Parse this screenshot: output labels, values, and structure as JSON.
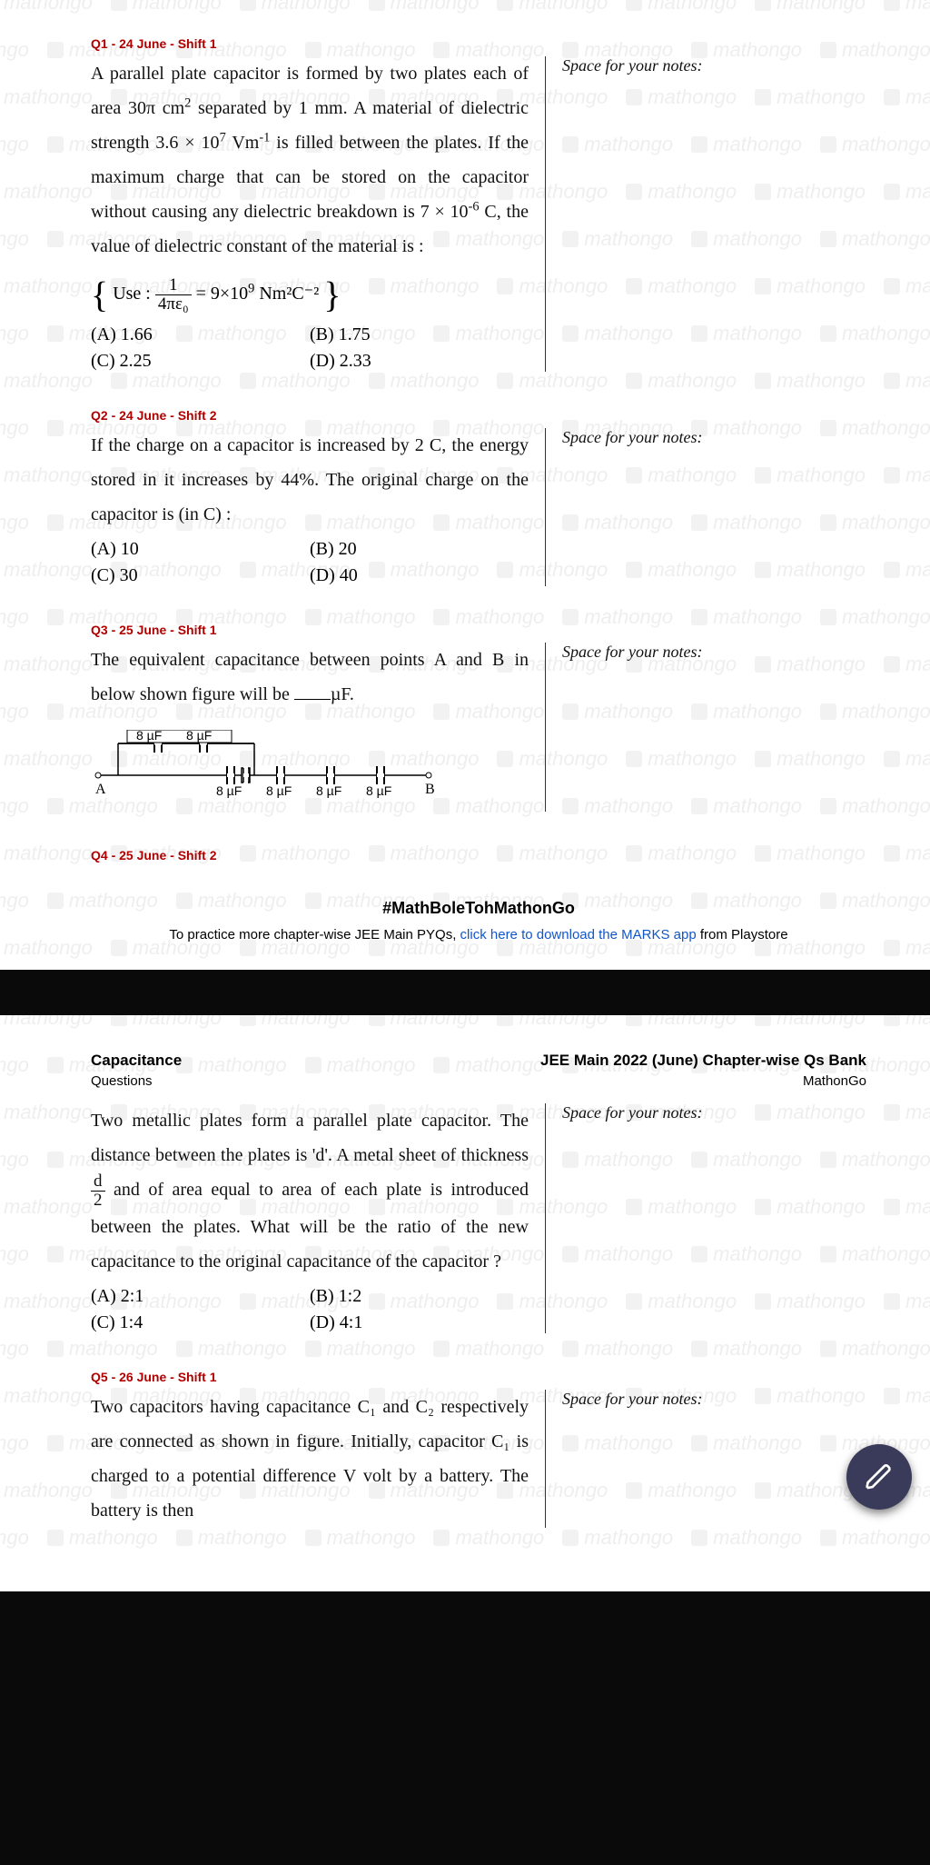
{
  "watermark_text": "mathongo",
  "watermark_color": "#888888",
  "page_bg": "#ffffff",
  "body_bg": "#0a0a0a",
  "header_color": "#b00000",
  "link_color": "#1155cc",
  "q1": {
    "header": "Q1 - 24 June - Shift 1",
    "text_parts": [
      "A parallel plate capacitor is formed by two plates each of area 30π cm",
      "2",
      " separated by 1 mm. A material of dielectric strength 3.6 × 10",
      "7",
      " Vm",
      "-1",
      " is filled between the plates. If the maximum charge that can be stored on the capacitor without causing any dielectric breakdown is 7 × 10",
      "-6",
      " C, the value of dielectric constant of the material is :"
    ],
    "formula_label": "Use :",
    "formula_lhs_num": "1",
    "formula_lhs_den": "4πε₀",
    "formula_eq": " = 9×10",
    "formula_exp": "9",
    "formula_units": " Nm²C⁻²",
    "options": {
      "A": "(A) 1.66",
      "B": "(B) 1.75",
      "C": "(C) 2.25",
      "D": "(D) 2.33"
    },
    "notes": "Space for your notes:"
  },
  "q2": {
    "header": "Q2 - 24 June - Shift 2",
    "text": "If the charge on a capacitor is increased by 2 C, the energy stored in it increases by 44%. The original charge on the capacitor is (in C) :",
    "options": {
      "A": "(A) 10",
      "B": "(B) 20",
      "C": "(C) 30",
      "D": "(D) 40"
    },
    "notes": "Space for your notes:"
  },
  "q3": {
    "header": "Q3 - 25 June - Shift 1",
    "text_pre": "The equivalent capacitance between points A and B in below shown figure will be ",
    "text_post": "µF.",
    "notes": "Space for your notes:",
    "circuit": {
      "top_labels": [
        "8 µF",
        "8 µF"
      ],
      "bottom_labels": [
        "8 µF",
        "8 µF",
        "8 µF",
        "8 µF"
      ],
      "terminal_A": "A",
      "terminal_B": "B"
    }
  },
  "q4": {
    "header": "Q4 - 25 June - Shift 2"
  },
  "footer": {
    "hash": "#MathBoleTohMathonGo",
    "practice_pre": "To practice more chapter-wise JEE Main PYQs, ",
    "practice_link": "click here to download the MARKS app",
    "practice_post": " from Playstore"
  },
  "page2": {
    "topic": "Capacitance",
    "bank": "JEE Main 2022 (June) Chapter-wise Qs Bank",
    "subL": "Questions",
    "subR": "MathonGo",
    "q4body": {
      "pre": "Two metallic plates form a parallel plate capacitor. The distance between the plates is 'd'. A metal sheet of thickness ",
      "frac_n": "d",
      "frac_d": "2",
      "post": " and of area equal to area of each plate is introduced between the plates. What will be the ratio  of the new capacitance to the original capacitance of the capacitor ?",
      "options": {
        "A": "(A) 2:1",
        "B": "(B) 1:2",
        "C": "(C) 1:4",
        "D": "(D) 4:1"
      },
      "notes": "Space for your notes:"
    },
    "q5": {
      "header": "Q5 - 26 June - Shift 1",
      "text": "Two capacitors having capacitance C₁ and C₂ respectively are connected as shown in figure. Initially, capacitor C₁ is charged to a potential difference V volt by a battery. The battery is then",
      "notes": "Space for your notes:"
    }
  }
}
